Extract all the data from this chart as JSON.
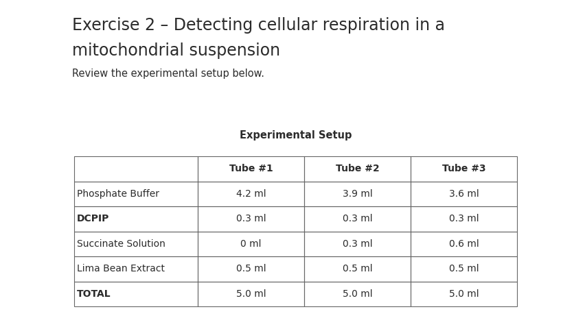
{
  "title_line1": "Exercise 2 – Detecting cellular respiration in a",
  "title_line2": "mitochondrial suspension",
  "subtitle": "Review the experimental setup below.",
  "table_title": "Experimental Setup",
  "col_headers": [
    "",
    "Tube #1",
    "Tube #2",
    "Tube #3"
  ],
  "rows": [
    [
      "Phosphate Buffer",
      "4.2 ml",
      "3.9 ml",
      "3.6 ml"
    ],
    [
      "DCPIP",
      "0.3 ml",
      "0.3 ml",
      "0.3 ml"
    ],
    [
      "Succinate Solution",
      "0 ml",
      "0.3 ml",
      "0.6 ml"
    ],
    [
      "Lima Bean Extract",
      "0.5 ml",
      "0.5 ml",
      "0.5 ml"
    ],
    [
      "TOTAL",
      "5.0 ml",
      "5.0 ml",
      "5.0 ml"
    ]
  ],
  "bg_color": "#ffffff",
  "text_color": "#2b2b2b",
  "border_color": "#666666",
  "title_fontsize": 17,
  "subtitle_fontsize": 10.5,
  "table_title_fontsize": 10.5,
  "cell_fontsize": 10
}
